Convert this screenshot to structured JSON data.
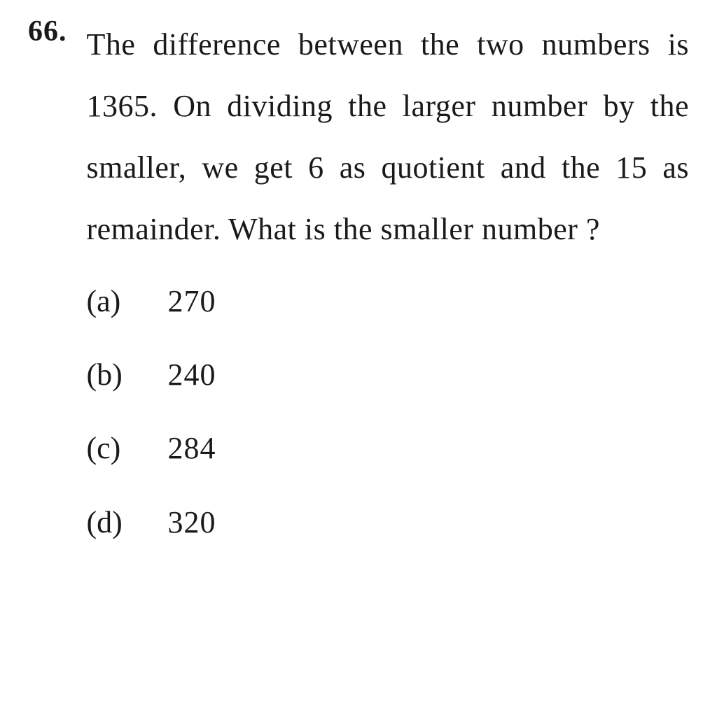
{
  "question": {
    "number": "66.",
    "text": "The difference between the two numbers is 1365. On dividing the larger number by the smaller, we get 6 as quotient and the 15 as remainder. What is the smaller number ?",
    "options": [
      {
        "label": "(a)",
        "value": "270"
      },
      {
        "label": "(b)",
        "value": "240"
      },
      {
        "label": "(c)",
        "value": "284"
      },
      {
        "label": "(d)",
        "value": "320"
      }
    ]
  },
  "styles": {
    "background_color": "#ffffff",
    "text_color": "#1a1a1a",
    "font_family": "Times New Roman",
    "question_number_fontsize": 42,
    "question_text_fontsize": 44,
    "option_fontsize": 44,
    "line_height": 2.0,
    "option_spacing": 48
  }
}
